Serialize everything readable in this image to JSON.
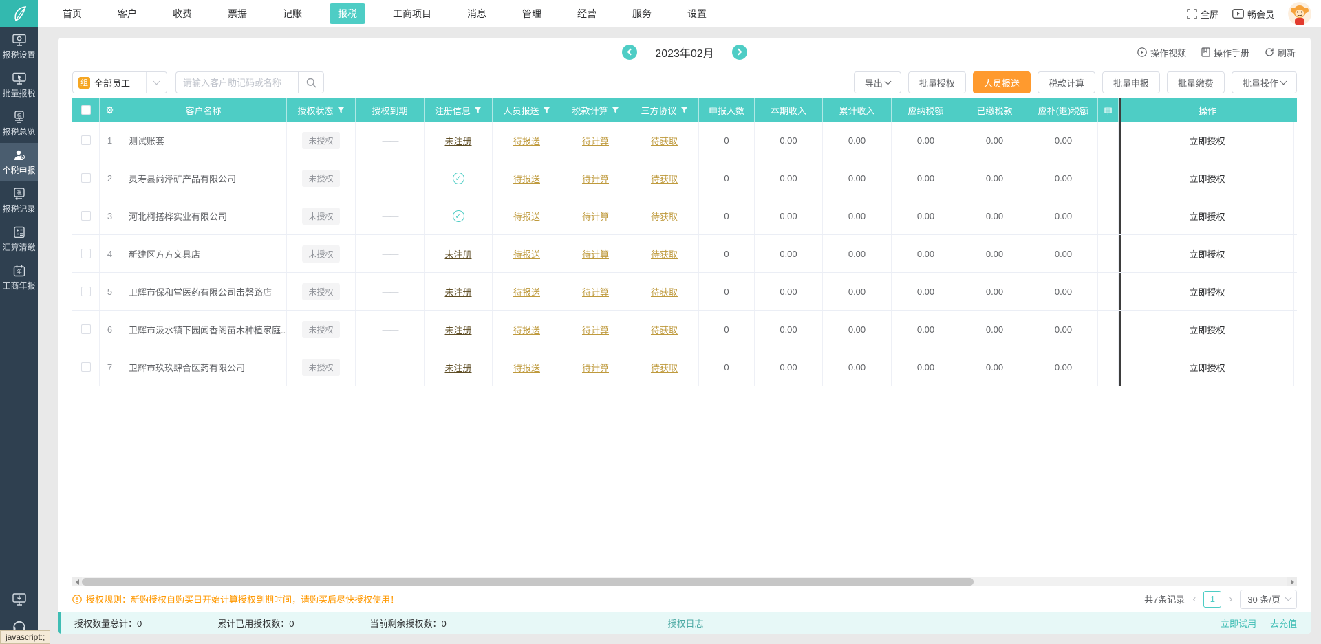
{
  "topnav": {
    "items": [
      {
        "label": "首页",
        "active": false
      },
      {
        "label": "客户",
        "active": false
      },
      {
        "label": "收费",
        "active": false
      },
      {
        "label": "票据",
        "active": false
      },
      {
        "label": "记账",
        "active": false
      },
      {
        "label": "报税",
        "active": true
      },
      {
        "label": "工商项目",
        "active": false
      },
      {
        "label": "消息",
        "active": false
      },
      {
        "label": "管理",
        "active": false
      },
      {
        "label": "经营",
        "active": false
      },
      {
        "label": "服务",
        "active": false
      },
      {
        "label": "设置",
        "active": false
      }
    ],
    "fullscreen_label": "全屏",
    "member_label": "畅会员"
  },
  "sidebar": {
    "items": [
      {
        "label": "报税设置",
        "icon": "monitor-gear-icon",
        "active": false
      },
      {
        "label": "批量报税",
        "icon": "monitor-cursor-icon",
        "active": false
      },
      {
        "label": "报税总览",
        "icon": "tax-overview-icon",
        "active": false
      },
      {
        "label": "个税申报",
        "icon": "person-tax-icon",
        "active": true
      },
      {
        "label": "报税记录",
        "icon": "tax-record-icon",
        "active": false
      },
      {
        "label": "汇算清缴",
        "icon": "calculator-icon",
        "active": false
      },
      {
        "label": "工商年报",
        "icon": "calendar-year-icon",
        "active": false
      }
    ],
    "bottom_icons": [
      {
        "name": "download-client-icon"
      },
      {
        "name": "customer-service-icon"
      }
    ]
  },
  "page": {
    "period": "2023年02月",
    "help_links": [
      {
        "icon": "play-circle-icon",
        "label": "操作视频"
      },
      {
        "icon": "manual-icon",
        "label": "操作手册"
      },
      {
        "icon": "refresh-icon",
        "label": "刷新"
      }
    ],
    "filters": {
      "employee_badge": "组",
      "employee_value": "全部员工",
      "search_placeholder": "请输入客户助记码或名称"
    },
    "actions": [
      {
        "label": "导出",
        "dropdown": true,
        "primary": false
      },
      {
        "label": "批量授权",
        "dropdown": false,
        "primary": false
      },
      {
        "label": "人员报送",
        "dropdown": false,
        "primary": true
      },
      {
        "label": "税款计算",
        "dropdown": false,
        "primary": false
      },
      {
        "label": "批量申报",
        "dropdown": false,
        "primary": false
      },
      {
        "label": "批量缴费",
        "dropdown": false,
        "primary": false
      },
      {
        "label": "批量操作",
        "dropdown": true,
        "primary": false
      }
    ],
    "table": {
      "columns": [
        {
          "label": "客户名称",
          "filter": false
        },
        {
          "label": "授权状态",
          "filter": true
        },
        {
          "label": "授权到期",
          "filter": false
        },
        {
          "label": "注册信息",
          "filter": true
        },
        {
          "label": "人员报送",
          "filter": true
        },
        {
          "label": "税款计算",
          "filter": true
        },
        {
          "label": "三方协议",
          "filter": true
        },
        {
          "label": "申报人数",
          "filter": false
        },
        {
          "label": "本期收入",
          "filter": false
        },
        {
          "label": "累计收入",
          "filter": false
        },
        {
          "label": "应纳税额",
          "filter": false
        },
        {
          "label": "已缴税款",
          "filter": false
        },
        {
          "label": "应补(退)税额",
          "filter": false
        },
        {
          "label": "申",
          "filter": false
        },
        {
          "label": "操作",
          "filter": false
        }
      ],
      "rows": [
        {
          "no": "1",
          "name": "测试账套",
          "auth": "未授权",
          "expire": "——",
          "reg": "未注册",
          "reg_icon": "",
          "staff": "待报送",
          "calc": "待计算",
          "agree": "待获取",
          "people": "0",
          "income": "0.00",
          "total_income": "0.00",
          "tax": "0.00",
          "paid": "0.00",
          "refund": "0.00",
          "action": "立即授权"
        },
        {
          "no": "2",
          "name": "灵寿县尚泽矿产品有限公司",
          "auth": "未授权",
          "expire": "——",
          "reg": "",
          "reg_icon": "check-circle-icon",
          "staff": "待报送",
          "calc": "待计算",
          "agree": "待获取",
          "people": "0",
          "income": "0.00",
          "total_income": "0.00",
          "tax": "0.00",
          "paid": "0.00",
          "refund": "0.00",
          "action": "立即授权"
        },
        {
          "no": "3",
          "name": "河北柯搭桦实业有限公司",
          "auth": "未授权",
          "expire": "——",
          "reg": "",
          "reg_icon": "check-circle-icon",
          "staff": "待报送",
          "calc": "待计算",
          "agree": "待获取",
          "people": "0",
          "income": "0.00",
          "total_income": "0.00",
          "tax": "0.00",
          "paid": "0.00",
          "refund": "0.00",
          "action": "立即授权"
        },
        {
          "no": "4",
          "name": "新建区方方文具店",
          "auth": "未授权",
          "expire": "——",
          "reg": "未注册",
          "reg_icon": "",
          "staff": "待报送",
          "calc": "待计算",
          "agree": "待获取",
          "people": "0",
          "income": "0.00",
          "total_income": "0.00",
          "tax": "0.00",
          "paid": "0.00",
          "refund": "0.00",
          "action": "立即授权"
        },
        {
          "no": "5",
          "name": "卫辉市保和堂医药有限公司击磬路店",
          "auth": "未授权",
          "expire": "——",
          "reg": "未注册",
          "reg_icon": "",
          "staff": "待报送",
          "calc": "待计算",
          "agree": "待获取",
          "people": "0",
          "income": "0.00",
          "total_income": "0.00",
          "tax": "0.00",
          "paid": "0.00",
          "refund": "0.00",
          "action": "立即授权"
        },
        {
          "no": "6",
          "name": "卫辉市汲水镇下园闻香阁苗木种植家庭...",
          "auth": "未授权",
          "expire": "——",
          "reg": "未注册",
          "reg_icon": "",
          "staff": "待报送",
          "calc": "待计算",
          "agree": "待获取",
          "people": "0",
          "income": "0.00",
          "total_income": "0.00",
          "tax": "0.00",
          "paid": "0.00",
          "refund": "0.00",
          "action": "立即授权"
        },
        {
          "no": "7",
          "name": "卫辉市玖玖肆合医药有限公司",
          "auth": "未授权",
          "expire": "——",
          "reg": "未注册",
          "reg_icon": "",
          "staff": "待报送",
          "calc": "待计算",
          "agree": "待获取",
          "people": "0",
          "income": "0.00",
          "total_income": "0.00",
          "tax": "0.00",
          "paid": "0.00",
          "refund": "0.00",
          "action": "立即授权"
        }
      ]
    },
    "notice": "授权规则：新购授权自购买日开始计算授权到期时间，请购买后尽快授权使用！",
    "pagination": {
      "total": "共7条记录",
      "page": "1",
      "page_size": "30 条/页"
    },
    "footer": {
      "stats": [
        {
          "label": "授权数量总计：",
          "value": "0"
        },
        {
          "label": "累计已用授权数：",
          "value": "0"
        },
        {
          "label": "当前剩余授权数：",
          "value": "0"
        }
      ],
      "log_link": "授权日志",
      "trial_link": "立即试用",
      "recharge_link": "去充值"
    }
  },
  "status_tooltip": "javascript:;",
  "colors": {
    "teal": "#4ecdc5",
    "dark_teal": "#3fbdb4",
    "orange": "#ff9a2e",
    "notice_orange": "#ff9800",
    "sidebar": "#2f4050"
  }
}
